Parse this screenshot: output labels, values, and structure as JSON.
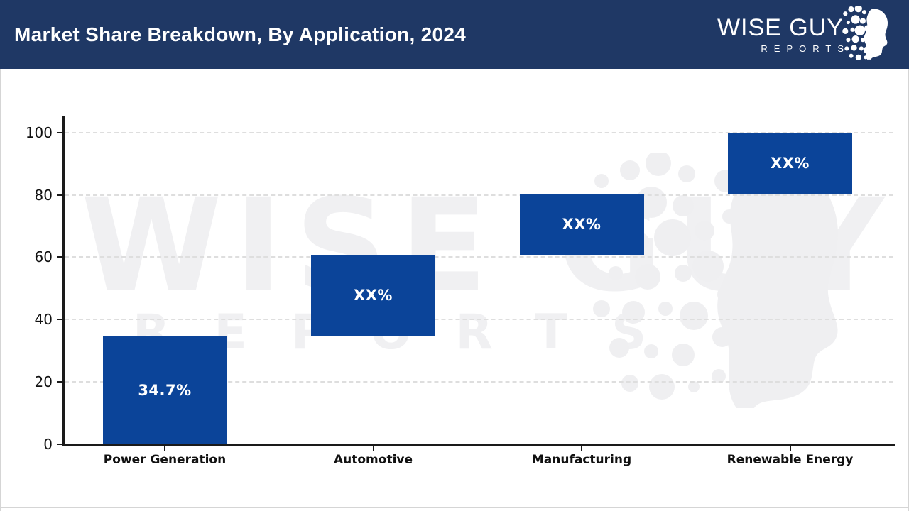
{
  "header": {
    "title": "Market Share Breakdown, By Application, 2024",
    "brand": {
      "name": "WISE GUY",
      "subtitle": "REPORTS"
    }
  },
  "watermark": {
    "line1": "WISE GUY",
    "line2": "REPORTS"
  },
  "chart_data": {
    "type": "bar",
    "subtype": "waterfall",
    "title": "Market Share Breakdown, By Application, 2024",
    "categories": [
      "Power Generation",
      "Automotive",
      "Manufacturing",
      "Renewable Energy"
    ],
    "segments": [
      {
        "category": "Power Generation",
        "start": 0,
        "end": 34.7,
        "label": "34.7%"
      },
      {
        "category": "Automotive",
        "start": 34.7,
        "end": 60.7,
        "label": "XX%"
      },
      {
        "category": "Manufacturing",
        "start": 60.7,
        "end": 80.4,
        "label": "XX%"
      },
      {
        "category": "Renewable Energy",
        "start": 80.4,
        "end": 100,
        "label": "XX%"
      }
    ],
    "xlabel": "",
    "ylabel": "",
    "yticks": [
      0,
      20,
      40,
      60,
      80,
      100
    ],
    "ylim": [
      0,
      105
    ],
    "grid": "horizontal-dashed",
    "legend": "none",
    "colors": {
      "bar": "#0b4499",
      "bar_label": "#ffffff",
      "axis": "#1a1a1a",
      "grid": "#dedede",
      "header_bg": "#1f3865",
      "header_text": "#ffffff",
      "watermark": "#f0f0f2"
    }
  }
}
